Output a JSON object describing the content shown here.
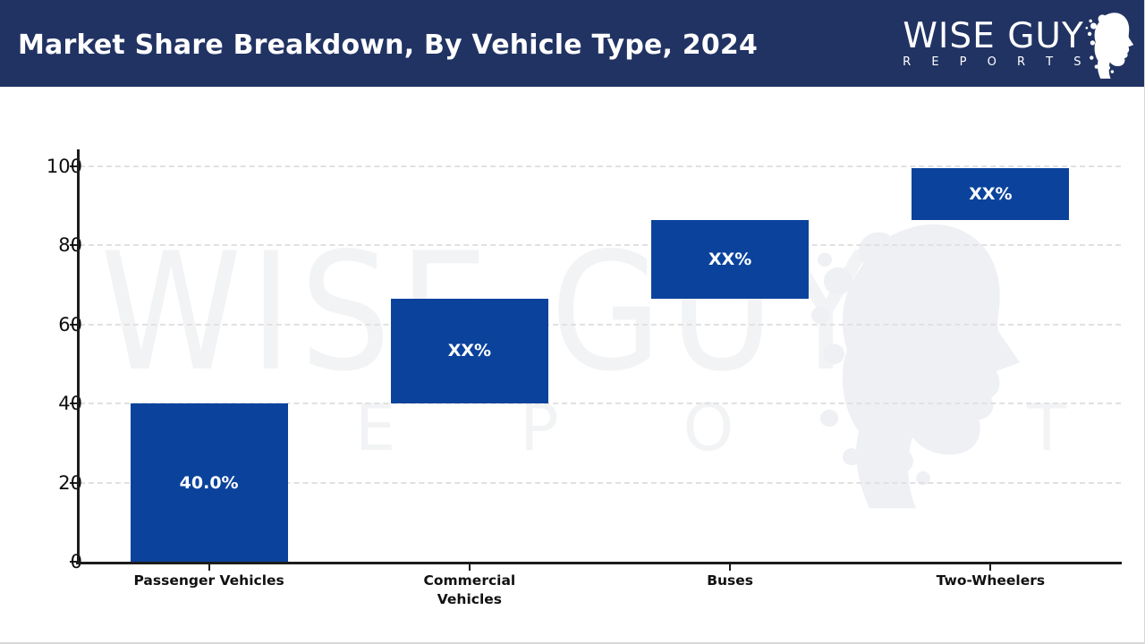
{
  "header": {
    "title": "Market Share Breakdown, By Vehicle Type, 2024",
    "background_color": "#213363"
  },
  "logo": {
    "line1": "WISE GUY",
    "line2": "R E P O R T S",
    "face_icon": "dotted-head-profile"
  },
  "watermark": {
    "line1": "WISE GUY",
    "line2": "R E P O R T S",
    "color": "#f2f3f5",
    "face_icon": "dotted-head-profile"
  },
  "chart_data": {
    "type": "bar",
    "subtype": "waterfall",
    "title": "Market Share Breakdown, By Vehicle Type, 2024",
    "categories": [
      "Passenger Vehicles",
      "Commercial\nVehicles",
      "Buses",
      "Two-Wheelers"
    ],
    "segments": [
      {
        "category": "Passenger Vehicles",
        "start": 0,
        "end": 40,
        "label": "40.0%"
      },
      {
        "category": "Commercial Vehicles",
        "start": 40,
        "end": 66.6,
        "label": "XX%"
      },
      {
        "category": "Buses",
        "start": 66.6,
        "end": 86.4,
        "label": "XX%"
      },
      {
        "category": "Two-Wheelers",
        "start": 86.4,
        "end": 99.5,
        "label": "XX%"
      }
    ],
    "bar_color": "#0b439c",
    "value_label_color": "#ffffff",
    "ylim": [
      0,
      100
    ],
    "yticks": [
      0,
      20,
      40,
      60,
      80,
      100
    ],
    "grid": "horizontal-dashed",
    "legend": "none",
    "xlabel": "",
    "ylabel": ""
  }
}
